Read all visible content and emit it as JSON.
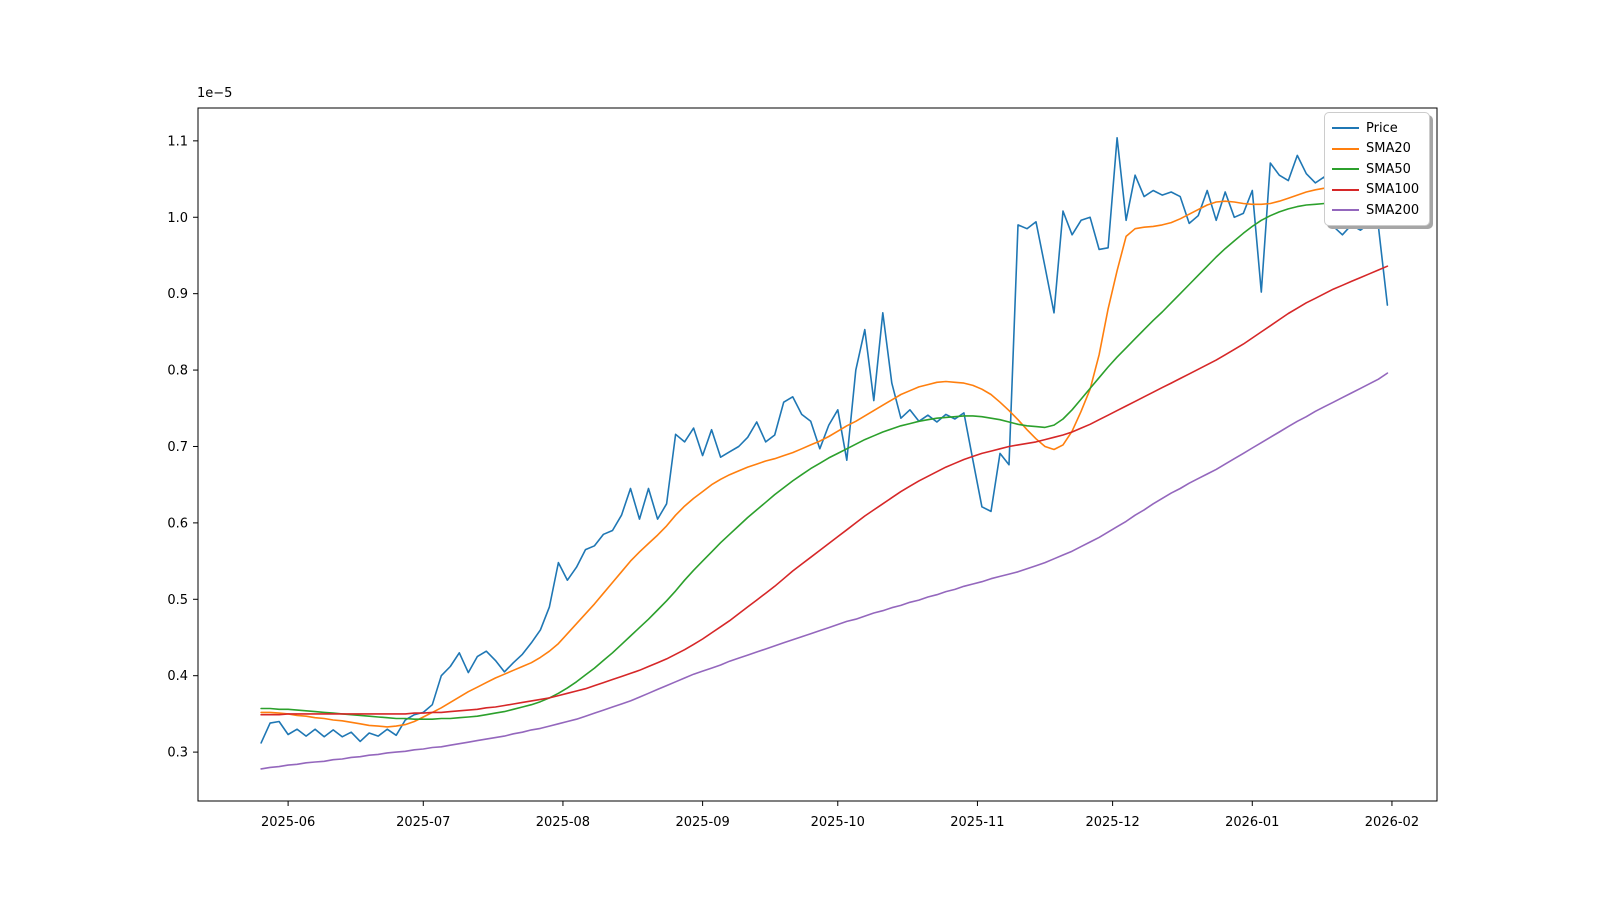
{
  "chart_data": {
    "type": "line",
    "title": "",
    "xlabel": "",
    "ylabel": "",
    "y_offset_label": "1e−5",
    "y_scale_factor": 1e-05,
    "grid": false,
    "legend_position": "upper right",
    "ylim": [
      0.236,
      1.143
    ],
    "xlim": [
      "2025-05-12",
      "2026-02-11"
    ],
    "y_ticks": [
      0.3,
      0.4,
      0.5,
      0.6,
      0.7,
      0.8,
      0.9,
      1.0,
      1.1
    ],
    "x_ticks": [
      {
        "date": "2025-06-01",
        "label": "2025-06"
      },
      {
        "date": "2025-07-01",
        "label": "2025-07"
      },
      {
        "date": "2025-08-01",
        "label": "2025-08"
      },
      {
        "date": "2025-09-01",
        "label": "2025-09"
      },
      {
        "date": "2025-10-01",
        "label": "2025-10"
      },
      {
        "date": "2025-11-01",
        "label": "2025-11"
      },
      {
        "date": "2025-12-01",
        "label": "2025-12"
      },
      {
        "date": "2026-01-01",
        "label": "2026-01"
      },
      {
        "date": "2026-02-01",
        "label": "2026-02"
      }
    ],
    "dates": [
      "2025-05-26",
      "2025-05-28",
      "2025-05-30",
      "2025-06-01",
      "2025-06-03",
      "2025-06-05",
      "2025-06-07",
      "2025-06-09",
      "2025-06-11",
      "2025-06-13",
      "2025-06-15",
      "2025-06-17",
      "2025-06-19",
      "2025-06-21",
      "2025-06-23",
      "2025-06-25",
      "2025-06-27",
      "2025-06-29",
      "2025-07-01",
      "2025-07-03",
      "2025-07-05",
      "2025-07-07",
      "2025-07-09",
      "2025-07-11",
      "2025-07-13",
      "2025-07-15",
      "2025-07-17",
      "2025-07-19",
      "2025-07-21",
      "2025-07-23",
      "2025-07-25",
      "2025-07-27",
      "2025-07-29",
      "2025-07-31",
      "2025-08-02",
      "2025-08-04",
      "2025-08-06",
      "2025-08-08",
      "2025-08-10",
      "2025-08-12",
      "2025-08-14",
      "2025-08-16",
      "2025-08-18",
      "2025-08-20",
      "2025-08-22",
      "2025-08-24",
      "2025-08-26",
      "2025-08-28",
      "2025-08-30",
      "2025-09-01",
      "2025-09-03",
      "2025-09-05",
      "2025-09-07",
      "2025-09-09",
      "2025-09-11",
      "2025-09-13",
      "2025-09-15",
      "2025-09-17",
      "2025-09-19",
      "2025-09-21",
      "2025-09-23",
      "2025-09-25",
      "2025-09-27",
      "2025-09-29",
      "2025-10-01",
      "2025-10-03",
      "2025-10-05",
      "2025-10-07",
      "2025-10-09",
      "2025-10-11",
      "2025-10-13",
      "2025-10-15",
      "2025-10-17",
      "2025-10-19",
      "2025-10-21",
      "2025-10-23",
      "2025-10-25",
      "2025-10-27",
      "2025-10-29",
      "2025-10-31",
      "2025-11-02",
      "2025-11-04",
      "2025-11-06",
      "2025-11-08",
      "2025-11-10",
      "2025-11-12",
      "2025-11-14",
      "2025-11-16",
      "2025-11-18",
      "2025-11-20",
      "2025-11-22",
      "2025-11-24",
      "2025-11-26",
      "2025-11-28",
      "2025-11-30",
      "2025-12-02",
      "2025-12-04",
      "2025-12-06",
      "2025-12-08",
      "2025-12-10",
      "2025-12-12",
      "2025-12-14",
      "2025-12-16",
      "2025-12-18",
      "2025-12-20",
      "2025-12-22",
      "2025-12-24",
      "2025-12-26",
      "2025-12-28",
      "2025-12-30",
      "2026-01-01",
      "2026-01-03",
      "2026-01-05",
      "2026-01-07",
      "2026-01-09",
      "2026-01-11",
      "2026-01-13",
      "2026-01-15",
      "2026-01-17",
      "2026-01-19",
      "2026-01-21",
      "2026-01-23",
      "2026-01-25",
      "2026-01-27",
      "2026-01-29",
      "2026-01-31"
    ],
    "series": [
      {
        "name": "Price",
        "color": "#1f77b4",
        "values": [
          0.312,
          0.338,
          0.34,
          0.323,
          0.33,
          0.321,
          0.33,
          0.32,
          0.329,
          0.32,
          0.326,
          0.314,
          0.325,
          0.321,
          0.33,
          0.322,
          0.342,
          0.349,
          0.352,
          0.362,
          0.4,
          0.412,
          0.43,
          0.404,
          0.425,
          0.432,
          0.42,
          0.405,
          0.417,
          0.428,
          0.443,
          0.46,
          0.49,
          0.548,
          0.525,
          0.542,
          0.565,
          0.57,
          0.585,
          0.59,
          0.61,
          0.645,
          0.605,
          0.645,
          0.605,
          0.625,
          0.716,
          0.706,
          0.724,
          0.688,
          0.722,
          0.686,
          0.693,
          0.7,
          0.712,
          0.732,
          0.706,
          0.715,
          0.758,
          0.765,
          0.742,
          0.733,
          0.697,
          0.728,
          0.748,
          0.682,
          0.8,
          0.853,
          0.76,
          0.875,
          0.783,
          0.737,
          0.748,
          0.733,
          0.741,
          0.732,
          0.742,
          0.736,
          0.744,
          0.682,
          0.621,
          0.615,
          0.691,
          0.676,
          0.99,
          0.985,
          0.994,
          0.935,
          0.875,
          1.008,
          0.977,
          0.996,
          1.0,
          0.958,
          0.96,
          1.104,
          0.996,
          1.055,
          1.027,
          1.035,
          1.029,
          1.033,
          1.027,
          0.992,
          1.002,
          1.035,
          0.996,
          1.033,
          1.0,
          1.005,
          1.035,
          0.902,
          1.071,
          1.055,
          1.048,
          1.081,
          1.057,
          1.045,
          1.053,
          0.988,
          0.977,
          0.99,
          0.983,
          0.992,
          0.988,
          0.885
        ]
      },
      {
        "name": "SMA20",
        "color": "#ff7f0e",
        "values": [
          0.352,
          0.352,
          0.351,
          0.35,
          0.348,
          0.347,
          0.345,
          0.344,
          0.342,
          0.341,
          0.339,
          0.337,
          0.335,
          0.334,
          0.333,
          0.334,
          0.336,
          0.34,
          0.346,
          0.352,
          0.358,
          0.365,
          0.372,
          0.379,
          0.385,
          0.391,
          0.397,
          0.402,
          0.407,
          0.412,
          0.417,
          0.424,
          0.432,
          0.442,
          0.455,
          0.468,
          0.481,
          0.494,
          0.508,
          0.522,
          0.536,
          0.55,
          0.562,
          0.573,
          0.584,
          0.596,
          0.61,
          0.622,
          0.632,
          0.641,
          0.65,
          0.657,
          0.663,
          0.668,
          0.673,
          0.677,
          0.681,
          0.684,
          0.688,
          0.692,
          0.697,
          0.702,
          0.707,
          0.713,
          0.72,
          0.727,
          0.733,
          0.74,
          0.747,
          0.754,
          0.761,
          0.768,
          0.773,
          0.778,
          0.781,
          0.784,
          0.785,
          0.784,
          0.783,
          0.78,
          0.775,
          0.768,
          0.758,
          0.747,
          0.735,
          0.722,
          0.71,
          0.7,
          0.696,
          0.702,
          0.72,
          0.746,
          0.775,
          0.82,
          0.88,
          0.93,
          0.975,
          0.985,
          0.987,
          0.988,
          0.99,
          0.993,
          0.998,
          1.004,
          1.01,
          1.016,
          1.02,
          1.021,
          1.02,
          1.018,
          1.017,
          1.017,
          1.018,
          1.021,
          1.025,
          1.029,
          1.033,
          1.036,
          1.038,
          1.039,
          1.04,
          1.041,
          1.042,
          1.043,
          1.044,
          1.046
        ]
      },
      {
        "name": "SMA50",
        "color": "#2ca02c",
        "values": [
          0.357,
          0.357,
          0.356,
          0.356,
          0.355,
          0.354,
          0.353,
          0.352,
          0.351,
          0.35,
          0.349,
          0.348,
          0.347,
          0.346,
          0.345,
          0.344,
          0.344,
          0.343,
          0.343,
          0.343,
          0.344,
          0.344,
          0.345,
          0.346,
          0.347,
          0.349,
          0.351,
          0.353,
          0.356,
          0.359,
          0.362,
          0.366,
          0.371,
          0.377,
          0.384,
          0.392,
          0.401,
          0.41,
          0.42,
          0.43,
          0.441,
          0.452,
          0.463,
          0.474,
          0.486,
          0.498,
          0.511,
          0.525,
          0.538,
          0.55,
          0.562,
          0.574,
          0.585,
          0.596,
          0.607,
          0.617,
          0.627,
          0.637,
          0.646,
          0.655,
          0.663,
          0.671,
          0.678,
          0.685,
          0.691,
          0.697,
          0.703,
          0.709,
          0.714,
          0.719,
          0.723,
          0.727,
          0.73,
          0.733,
          0.735,
          0.737,
          0.738,
          0.739,
          0.74,
          0.74,
          0.739,
          0.737,
          0.735,
          0.732,
          0.729,
          0.727,
          0.726,
          0.725,
          0.728,
          0.736,
          0.748,
          0.762,
          0.776,
          0.79,
          0.804,
          0.817,
          0.829,
          0.841,
          0.853,
          0.865,
          0.876,
          0.888,
          0.9,
          0.912,
          0.924,
          0.936,
          0.948,
          0.959,
          0.969,
          0.979,
          0.988,
          0.996,
          1.002,
          1.007,
          1.011,
          1.014,
          1.016,
          1.017,
          1.018,
          1.019,
          1.02,
          1.021,
          1.022,
          1.023,
          1.024,
          1.025
        ]
      },
      {
        "name": "SMA100",
        "color": "#d62728",
        "values": [
          0.349,
          0.349,
          0.349,
          0.35,
          0.35,
          0.35,
          0.35,
          0.35,
          0.35,
          0.35,
          0.35,
          0.35,
          0.35,
          0.35,
          0.35,
          0.35,
          0.35,
          0.351,
          0.351,
          0.352,
          0.352,
          0.353,
          0.354,
          0.355,
          0.356,
          0.358,
          0.359,
          0.361,
          0.363,
          0.365,
          0.367,
          0.369,
          0.371,
          0.374,
          0.377,
          0.38,
          0.383,
          0.387,
          0.391,
          0.395,
          0.399,
          0.403,
          0.407,
          0.412,
          0.417,
          0.422,
          0.428,
          0.434,
          0.441,
          0.448,
          0.456,
          0.464,
          0.472,
          0.481,
          0.49,
          0.499,
          0.508,
          0.517,
          0.527,
          0.537,
          0.546,
          0.555,
          0.564,
          0.573,
          0.582,
          0.591,
          0.6,
          0.609,
          0.617,
          0.625,
          0.633,
          0.641,
          0.648,
          0.655,
          0.661,
          0.667,
          0.673,
          0.678,
          0.683,
          0.687,
          0.691,
          0.694,
          0.697,
          0.7,
          0.702,
          0.704,
          0.706,
          0.709,
          0.712,
          0.715,
          0.719,
          0.724,
          0.729,
          0.735,
          0.741,
          0.747,
          0.753,
          0.759,
          0.765,
          0.771,
          0.777,
          0.783,
          0.789,
          0.795,
          0.801,
          0.807,
          0.813,
          0.82,
          0.827,
          0.834,
          0.842,
          0.85,
          0.858,
          0.866,
          0.874,
          0.881,
          0.888,
          0.894,
          0.9,
          0.906,
          0.911,
          0.916,
          0.921,
          0.926,
          0.931,
          0.936
        ]
      },
      {
        "name": "SMA200",
        "color": "#9467bd",
        "values": [
          0.278,
          0.28,
          0.281,
          0.283,
          0.284,
          0.286,
          0.287,
          0.288,
          0.29,
          0.291,
          0.293,
          0.294,
          0.296,
          0.297,
          0.299,
          0.3,
          0.301,
          0.303,
          0.304,
          0.306,
          0.307,
          0.309,
          0.311,
          0.313,
          0.315,
          0.317,
          0.319,
          0.321,
          0.324,
          0.326,
          0.329,
          0.331,
          0.334,
          0.337,
          0.34,
          0.343,
          0.347,
          0.351,
          0.355,
          0.359,
          0.363,
          0.367,
          0.372,
          0.377,
          0.382,
          0.387,
          0.392,
          0.397,
          0.402,
          0.406,
          0.41,
          0.414,
          0.419,
          0.423,
          0.427,
          0.431,
          0.435,
          0.439,
          0.443,
          0.447,
          0.451,
          0.455,
          0.459,
          0.463,
          0.467,
          0.471,
          0.474,
          0.478,
          0.482,
          0.485,
          0.489,
          0.492,
          0.496,
          0.499,
          0.503,
          0.506,
          0.51,
          0.513,
          0.517,
          0.52,
          0.523,
          0.527,
          0.53,
          0.533,
          0.536,
          0.54,
          0.544,
          0.548,
          0.553,
          0.558,
          0.563,
          0.569,
          0.575,
          0.581,
          0.588,
          0.595,
          0.602,
          0.61,
          0.617,
          0.625,
          0.632,
          0.639,
          0.645,
          0.652,
          0.658,
          0.664,
          0.67,
          0.677,
          0.684,
          0.691,
          0.698,
          0.705,
          0.712,
          0.719,
          0.726,
          0.733,
          0.739,
          0.746,
          0.752,
          0.758,
          0.764,
          0.77,
          0.776,
          0.782,
          0.788,
          0.796
        ]
      }
    ]
  }
}
